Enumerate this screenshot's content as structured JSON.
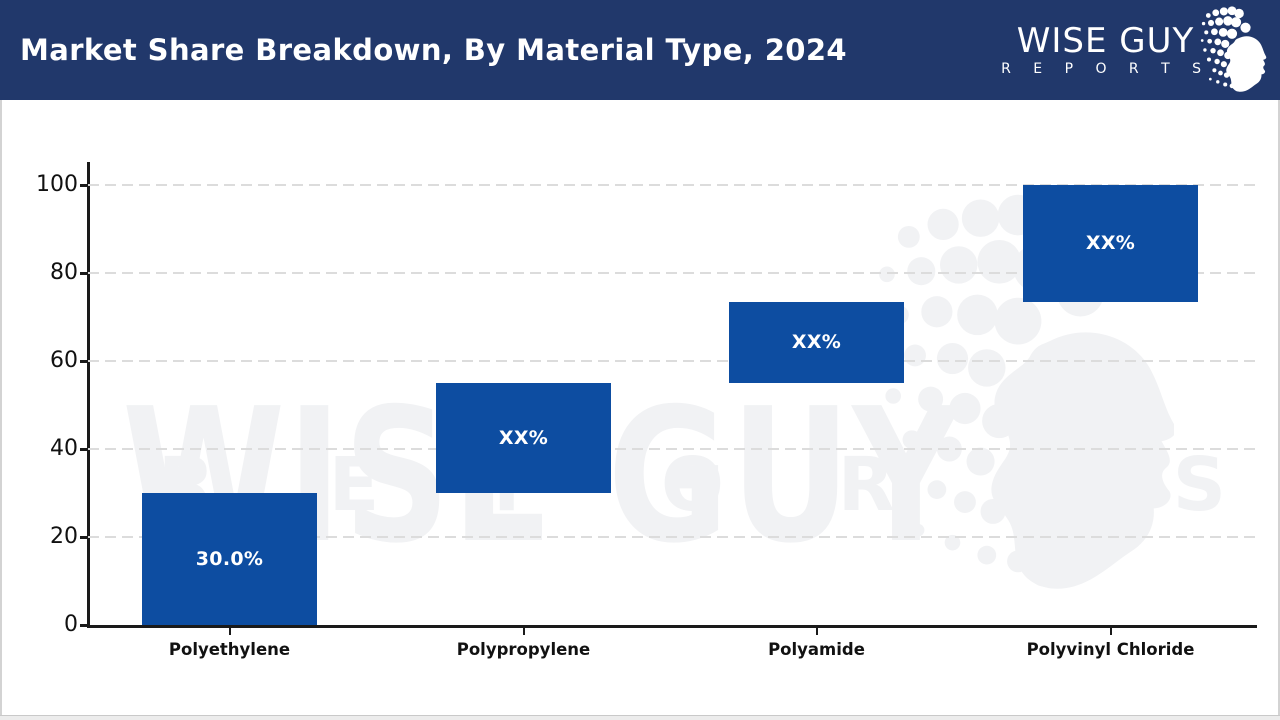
{
  "header": {
    "title": "Market Share Breakdown, By Material Type, 2024",
    "logo": {
      "line1": "WISE GUY",
      "line2": "R E P O R T S"
    }
  },
  "watermark": {
    "line1": "WISE GUY",
    "line2": "R E P O R T S"
  },
  "colors": {
    "header_bg": "#21386b",
    "bar_blue": "#0d4da1",
    "grid_gray": "#dcdcdc",
    "watermark_gray": "#f1f2f4",
    "bar_label_text": "#ffffff"
  },
  "chart_data": {
    "type": "bar",
    "subtype": "waterfall",
    "title": "Market Share Breakdown, By Material Type, 2024",
    "categories": [
      "Polyethylene",
      "Polypropylene",
      "Polyamide",
      "Polyvinyl Chloride"
    ],
    "segments": [
      {
        "category": "Polyethylene",
        "start": 0,
        "end": 30,
        "label": "30.0%"
      },
      {
        "category": "Polypropylene",
        "start": 30,
        "end": 55,
        "label": "XX%"
      },
      {
        "category": "Polyamide",
        "start": 55,
        "end": 73.5,
        "label": "XX%"
      },
      {
        "category": "Polyvinyl Chloride",
        "start": 73.5,
        "end": 100,
        "label": "XX%"
      }
    ],
    "xlabel": "",
    "ylabel": "",
    "ylim": [
      0,
      105
    ],
    "yticks": [
      0,
      20,
      40,
      60,
      80,
      100
    ],
    "grid": "horizontal-dashed",
    "legend": "none"
  }
}
